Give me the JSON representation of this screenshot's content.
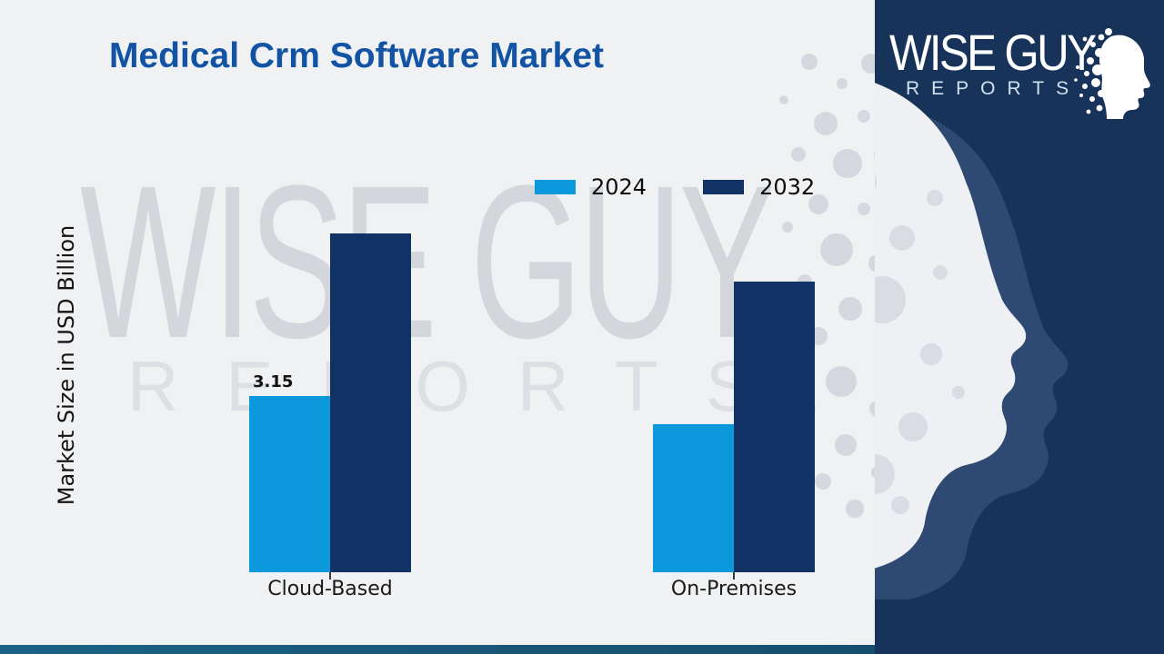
{
  "title": "Medical Crm Software Market",
  "logo": {
    "brand_line1": "WISE GUY",
    "brand_line2": "REPORTS"
  },
  "watermark": {
    "line1": "WISE GUY",
    "line2": "REPORTS"
  },
  "chart_data": {
    "type": "bar",
    "title": "Medical Crm Software Market",
    "ylabel": "Market Size in USD Billion",
    "xlabel": "",
    "categories": [
      "Cloud-Based",
      "On-Premises"
    ],
    "series": [
      {
        "name": "2024",
        "color": "#0c99dc",
        "values": [
          3.15,
          2.65
        ]
      },
      {
        "name": "2032",
        "color": "#113264",
        "values": [
          6.05,
          5.2
        ]
      }
    ],
    "value_labels": [
      [
        "3.15",
        ""
      ],
      [
        "",
        ""
      ]
    ],
    "ylim": [
      0,
      7
    ],
    "grid": false,
    "legend_position": "top-right"
  },
  "colors": {
    "title_blue": "#1253a4",
    "bar_2024": "#0c99dc",
    "bar_2032": "#113264",
    "panel_navy": "#17335a",
    "strip_teal": "#1c6284",
    "watermark_gray": "#d3d6db",
    "background": "#f0f1f3"
  }
}
